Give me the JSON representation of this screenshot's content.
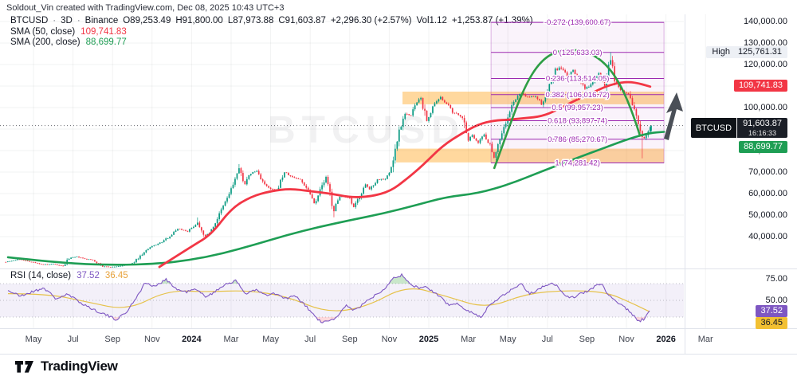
{
  "header": {
    "byline": "Soldout_Vin created with TradingView.com, Dec 08, 2025 10:43 UTC+3",
    "legend": {
      "symbol": "BTCUSD",
      "sep": "·",
      "interval": "3D",
      "exchange": "Binance",
      "o": "O89,253.49",
      "h": "H91,800.00",
      "l": "L87,973.88",
      "c": "C91,603.87",
      "chg": "+2,296.30 (+2.57%)",
      "vol": "Vol1.12",
      "volchg": "+1,253.87 (+1.39%)"
    },
    "sma50": {
      "label": "SMA (50, close)",
      "value": "109,741.83"
    },
    "sma200": {
      "label": "SMA (200, close)",
      "value": "88,699.77"
    }
  },
  "watermark": "BTCUSD",
  "colors": {
    "up": "#089981",
    "down": "#f23645",
    "sma50": "#f23645",
    "sma200": "#1e9e54",
    "arc": "#2e9e45",
    "fib": "#9c27b0",
    "fib_fill": "rgba(156,39,176,0.055)",
    "zone": "rgba(255,152,0,0.38)",
    "rsi": "#7e57c2",
    "rsi_ma": "#e6c24a",
    "grid": "rgba(42,46,57,0.06)",
    "arrow": "#4a4f57"
  },
  "price_axis": {
    "ticks": [
      {
        "v": 140000,
        "label": "140,000.00"
      },
      {
        "v": 130000,
        "label": "130,000.00"
      },
      {
        "v": 120000,
        "label": "120,000.00"
      },
      {
        "v": 100000,
        "label": "100,000.00"
      },
      {
        "v": 80000,
        "label": "80,000.00"
      },
      {
        "v": 70000,
        "label": "70,000.00"
      },
      {
        "v": 60000,
        "label": "60,000.00"
      },
      {
        "v": 50000,
        "label": "50,000.00"
      },
      {
        "v": 40000,
        "label": "40,000.00"
      }
    ],
    "badges": {
      "high": {
        "label": "High",
        "value": "125,761.31"
      },
      "sma50": {
        "value": "109,741.83"
      },
      "last": {
        "ticker": "BTCUSD",
        "price": "91,603.87",
        "countdown": "16:16:33"
      },
      "sma200": {
        "value": "88,699.77"
      }
    }
  },
  "time_axis": {
    "labels": [
      {
        "t": 0,
        "text": "May"
      },
      {
        "t": 2,
        "text": "Jul"
      },
      {
        "t": 4,
        "text": "Sep"
      },
      {
        "t": 6,
        "text": "Nov"
      },
      {
        "t": 8,
        "text": "2024",
        "year": true
      },
      {
        "t": 10,
        "text": "Mar"
      },
      {
        "t": 12,
        "text": "May"
      },
      {
        "t": 14,
        "text": "Jul"
      },
      {
        "t": 16,
        "text": "Sep"
      },
      {
        "t": 18,
        "text": "Nov"
      },
      {
        "t": 20,
        "text": "2025",
        "year": true
      },
      {
        "t": 22,
        "text": "Mar"
      },
      {
        "t": 24,
        "text": "May"
      },
      {
        "t": 26,
        "text": "Jul"
      },
      {
        "t": 28,
        "text": "Sep"
      },
      {
        "t": 30,
        "text": "Nov"
      },
      {
        "t": 32,
        "text": "2026",
        "year": true
      },
      {
        "t": 34,
        "text": "Mar"
      }
    ]
  },
  "rsi_pane": {
    "legend": "RSI (14, close)",
    "value1": "37.52",
    "value2": "36.45",
    "ticks": [
      {
        "v": 75,
        "label": "75.00"
      },
      {
        "v": 50,
        "label": "50.00"
      }
    ],
    "badges": {
      "rsi": "37.52",
      "ma": "36.45"
    }
  },
  "footer": {
    "brand": "TradingView"
  },
  "chart_data": {
    "type": "candlestick",
    "title": "BTCUSD 3D Binance",
    "x_unit": "months since 2023-05",
    "price_range": [
      25200,
      143000
    ],
    "candle_step_months": 0.1,
    "price_path": [
      [
        -1.4,
        28300
      ],
      [
        -0.7,
        29500
      ],
      [
        0,
        28000
      ],
      [
        0.5,
        27000
      ],
      [
        1,
        27200
      ],
      [
        1.5,
        26200
      ],
      [
        1.8,
        30000
      ],
      [
        2.2,
        30600
      ],
      [
        2.6,
        29600
      ],
      [
        3,
        29200
      ],
      [
        3.5,
        26100
      ],
      [
        4,
        25900
      ],
      [
        4.5,
        26500
      ],
      [
        5,
        27500
      ],
      [
        5.7,
        33500
      ],
      [
        6,
        35500
      ],
      [
        6.5,
        37500
      ],
      [
        7,
        41000
      ],
      [
        7.3,
        43800
      ],
      [
        7.8,
        42500
      ],
      [
        8,
        44000
      ],
      [
        8.3,
        46500
      ],
      [
        8.7,
        40000
      ],
      [
        9,
        43000
      ],
      [
        9.5,
        52000
      ],
      [
        10,
        62000
      ],
      [
        10.4,
        71500
      ],
      [
        10.7,
        64500
      ],
      [
        11,
        69500
      ],
      [
        11.3,
        70500
      ],
      [
        11.7,
        64000
      ],
      [
        12,
        62000
      ],
      [
        12.3,
        61500
      ],
      [
        12.7,
        70000
      ],
      [
        13,
        68000
      ],
      [
        13.5,
        66500
      ],
      [
        14,
        60500
      ],
      [
        14.2,
        55500
      ],
      [
        14.8,
        67500
      ],
      [
        15.2,
        52000
      ],
      [
        15.5,
        59000
      ],
      [
        16,
        57500
      ],
      [
        16.2,
        53500
      ],
      [
        16.8,
        64000
      ],
      [
        17,
        62000
      ],
      [
        17.4,
        66500
      ],
      [
        17.8,
        67000
      ],
      [
        18,
        69500
      ],
      [
        18.2,
        75500
      ],
      [
        18.5,
        89500
      ],
      [
        18.8,
        97500
      ],
      [
        19.1,
        96000
      ],
      [
        19.3,
        101000
      ],
      [
        19.6,
        104500
      ],
      [
        19.9,
        93500
      ],
      [
        20.2,
        100500
      ],
      [
        20.6,
        104500
      ],
      [
        20.9,
        102000
      ],
      [
        21.2,
        97500
      ],
      [
        21.7,
        96000
      ],
      [
        21.95,
        84500
      ],
      [
        22.2,
        87000
      ],
      [
        22.5,
        84000
      ],
      [
        22.8,
        87500
      ],
      [
        23.1,
        82500
      ],
      [
        23.3,
        77000
      ],
      [
        23.7,
        88500
      ],
      [
        24,
        95000
      ],
      [
        24.3,
        103000
      ],
      [
        24.7,
        107000
      ],
      [
        25,
        104500
      ],
      [
        25.4,
        105500
      ],
      [
        25.75,
        101000
      ],
      [
        26,
        107500
      ],
      [
        26.4,
        117500
      ],
      [
        26.7,
        118500
      ],
      [
        27,
        114500
      ],
      [
        27.3,
        117000
      ],
      [
        27.6,
        113000
      ],
      [
        27.9,
        108500
      ],
      [
        28.2,
        110500
      ],
      [
        28.6,
        116500
      ],
      [
        28.9,
        109500
      ],
      [
        29.17,
        123500
      ],
      [
        29.4,
        112000
      ],
      [
        29.7,
        108500
      ],
      [
        30.1,
        106000
      ],
      [
        30.4,
        99000
      ],
      [
        30.65,
        91500
      ],
      [
        30.85,
        84500
      ],
      [
        31,
        87500
      ],
      [
        31.1,
        89500
      ],
      [
        31.25,
        91603.87
      ]
    ],
    "wick_overrides": [
      {
        "t": 8.3,
        "high": 48900
      },
      {
        "t": 10.4,
        "high": 73700
      },
      {
        "t": 15.2,
        "low": 49000
      },
      {
        "t": 29.17,
        "high": 125761.31
      },
      {
        "t": 30.85,
        "low": 76400
      }
    ],
    "last_candle": {
      "t": 31.25,
      "open": 89253.49,
      "high": 91800,
      "low": 87973.88,
      "close": 91603.87
    },
    "current_price": 91603.87,
    "high_marker": {
      "t": 29.17,
      "price": 125761.31
    },
    "sma50": [
      [
        6.37,
        25900
      ],
      [
        7.98,
        35300
      ],
      [
        8.99,
        40900
      ],
      [
        10,
        53000
      ],
      [
        11,
        58600
      ],
      [
        12,
        61200
      ],
      [
        13,
        62300
      ],
      [
        14,
        61100
      ],
      [
        15.04,
        60000
      ],
      [
        16.05,
        58200
      ],
      [
        17.06,
        58600
      ],
      [
        18.06,
        61100
      ],
      [
        18.87,
        66700
      ],
      [
        19.68,
        73000
      ],
      [
        20.69,
        82200
      ],
      [
        21.69,
        88100
      ],
      [
        22.5,
        92200
      ],
      [
        23.3,
        94000
      ],
      [
        24.1,
        94400
      ],
      [
        24.9,
        95100
      ],
      [
        25.7,
        95900
      ],
      [
        26.5,
        98800
      ],
      [
        27.3,
        102900
      ],
      [
        28.15,
        106200
      ],
      [
        28.95,
        109900
      ],
      [
        29.76,
        111800
      ],
      [
        30.4,
        111800
      ],
      [
        31.2,
        109741.83
      ]
    ],
    "sma200": [
      [
        -1.29,
        30400
      ],
      [
        1.33,
        27800
      ],
      [
        3.95,
        26700
      ],
      [
        6.37,
        27400
      ],
      [
        7.98,
        29200
      ],
      [
        9.6,
        32200
      ],
      [
        11.2,
        36300
      ],
      [
        12.8,
        40700
      ],
      [
        14.4,
        44400
      ],
      [
        16.05,
        47700
      ],
      [
        17.66,
        50700
      ],
      [
        19.27,
        54400
      ],
      [
        20.89,
        58500
      ],
      [
        22.5,
        60100
      ],
      [
        24.1,
        64400
      ],
      [
        25.7,
        70300
      ],
      [
        27.3,
        75900
      ],
      [
        28.95,
        81500
      ],
      [
        30.16,
        85600
      ],
      [
        31.17,
        88200
      ],
      [
        31.9,
        88700
      ]
    ],
    "fib": {
      "t1": 23.15,
      "t2": 31.9,
      "levels": [
        {
          "label": "-0.272 (139,600.67)",
          "price": 139600.67
        },
        {
          "label": "0 (125,633.03)",
          "price": 125633.03
        },
        {
          "label": "0.236 (113,514.05)",
          "price": 113514.05
        },
        {
          "label": "0.382 (106,016.72)",
          "price": 106016.72
        },
        {
          "label": "0.5 (99,957.23)",
          "price": 99957.23
        },
        {
          "label": "0.618 (93,897.74)",
          "price": 93897.74
        },
        {
          "label": "0.786 (85,270.67)",
          "price": 85270.67
        },
        {
          "label": "1 (74,281.42)",
          "price": 74281.42
        }
      ]
    },
    "zones": [
      {
        "t1": 18.67,
        "t2": 31.9,
        "p1": 107400,
        "p2": 101500
      },
      {
        "t1": 18.35,
        "t2": 31.9,
        "p1": 80900,
        "p2": 74500
      }
    ],
    "arc": {
      "base1": [
        23.3,
        71500
      ],
      "peak": [
        27.15,
        126800
      ],
      "base2": [
        30.7,
        86500
      ]
    },
    "arrow": {
      "note": "up-right projection arrow",
      "x": 845,
      "y": 145
    },
    "rsi": {
      "upper": 70,
      "mid": 50,
      "lower": 30,
      "last": 37.52,
      "ma_last": 36.45,
      "series": [
        [
          -1.29,
          62
        ],
        [
          -0.69,
          55
        ],
        [
          -0.08,
          60
        ],
        [
          0.52,
          65
        ],
        [
          1.13,
          52
        ],
        [
          1.73,
          57
        ],
        [
          2.34,
          48
        ],
        [
          2.94,
          40
        ],
        [
          3.55,
          34
        ],
        [
          4.15,
          27
        ],
        [
          4.68,
          35
        ],
        [
          5.16,
          52
        ],
        [
          5.65,
          71
        ],
        [
          6.17,
          66
        ],
        [
          6.69,
          76
        ],
        [
          7.18,
          64
        ],
        [
          7.66,
          60
        ],
        [
          8.19,
          63
        ],
        [
          8.71,
          55
        ],
        [
          9.19,
          60
        ],
        [
          9.72,
          70
        ],
        [
          10.24,
          73
        ],
        [
          10.73,
          58
        ],
        [
          11.21,
          63
        ],
        [
          11.73,
          56
        ],
        [
          12.22,
          58
        ],
        [
          12.74,
          52
        ],
        [
          13.23,
          55
        ],
        [
          13.71,
          45
        ],
        [
          14.19,
          32
        ],
        [
          14.6,
          23
        ],
        [
          15,
          26
        ],
        [
          15.4,
          30
        ],
        [
          15.81,
          45
        ],
        [
          16.21,
          38
        ],
        [
          16.61,
          44
        ],
        [
          17.02,
          52
        ],
        [
          17.42,
          58
        ],
        [
          17.82,
          66
        ],
        [
          18.23,
          78
        ],
        [
          18.63,
          80
        ],
        [
          19.03,
          70
        ],
        [
          19.44,
          65
        ],
        [
          19.84,
          66
        ],
        [
          20.24,
          60
        ],
        [
          20.65,
          52
        ],
        [
          21.05,
          44
        ],
        [
          21.45,
          46
        ],
        [
          21.85,
          40
        ],
        [
          22.26,
          34
        ],
        [
          22.66,
          30
        ],
        [
          23.06,
          44
        ],
        [
          23.47,
          52
        ],
        [
          23.87,
          58
        ],
        [
          24.27,
          64
        ],
        [
          24.68,
          70
        ],
        [
          25.08,
          58
        ],
        [
          25.48,
          62
        ],
        [
          25.89,
          68
        ],
        [
          26.29,
          71
        ],
        [
          26.69,
          62
        ],
        [
          27.1,
          52
        ],
        [
          27.5,
          56
        ],
        [
          27.9,
          60
        ],
        [
          28.31,
          65
        ],
        [
          28.71,
          70
        ],
        [
          29.11,
          56
        ],
        [
          29.52,
          48
        ],
        [
          29.92,
          42
        ],
        [
          30.32,
          32
        ],
        [
          30.65,
          25
        ],
        [
          30.89,
          28
        ],
        [
          31.17,
          37.52
        ]
      ],
      "ma": [
        [
          -1.29,
          58
        ],
        [
          0.73,
          58
        ],
        [
          2.74,
          48
        ],
        [
          4.76,
          38
        ],
        [
          6.77,
          62
        ],
        [
          8.79,
          60
        ],
        [
          10.81,
          62
        ],
        [
          12.82,
          55
        ],
        [
          14.84,
          35
        ],
        [
          16.85,
          42
        ],
        [
          18.87,
          68
        ],
        [
          20.89,
          55
        ],
        [
          22.9,
          40
        ],
        [
          24.92,
          58
        ],
        [
          26.94,
          62
        ],
        [
          28.95,
          60
        ],
        [
          30.16,
          48
        ],
        [
          31.17,
          36.45
        ]
      ]
    }
  }
}
